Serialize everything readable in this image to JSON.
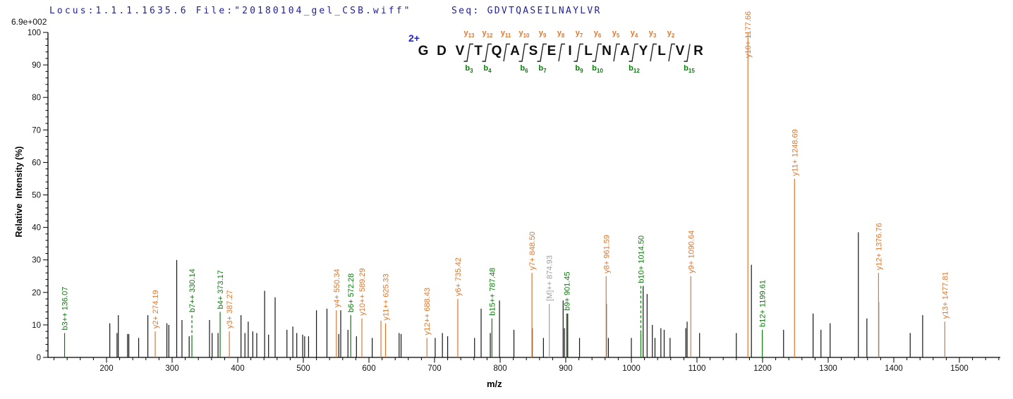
{
  "header": {
    "locus_file": "Locus:1.1.1.1635.6 File:\"20180104_gel_CSB.wiff\"",
    "seq_label": "Seq: GDVTQASEILNAYLVR",
    "base_peak_intensity": "6.9e+002"
  },
  "peptide": {
    "charge_label": "2+",
    "residues": [
      "G",
      "D",
      "V",
      "T",
      "Q",
      "A",
      "S",
      "E",
      "I",
      "L",
      "N",
      "A",
      "Y",
      "L",
      "V",
      "R"
    ],
    "cleavages": [
      {
        "after": 3,
        "y": "y13",
        "b": "b3"
      },
      {
        "after": 4,
        "y": "y12",
        "b": "b4"
      },
      {
        "after": 5,
        "y": "y11",
        "b": null
      },
      {
        "after": 6,
        "y": "y10",
        "b": "b6"
      },
      {
        "after": 7,
        "y": "y9",
        "b": "b7"
      },
      {
        "after": 8,
        "y": "y8",
        "b": null
      },
      {
        "after": 9,
        "y": "y7",
        "b": "b9"
      },
      {
        "after": 10,
        "y": "y6",
        "b": "b10"
      },
      {
        "after": 11,
        "y": "y5",
        "b": null
      },
      {
        "after": 12,
        "y": "y4",
        "b": "b12"
      },
      {
        "after": 13,
        "y": "y3",
        "b": null
      },
      {
        "after": 14,
        "y": "y2",
        "b": null
      },
      {
        "after": 15,
        "y": null,
        "b": "b15"
      }
    ]
  },
  "chart_data": {
    "type": "bar",
    "subtype": "ms2_centroid_mass_spectrum",
    "title": "",
    "xlabel": "m/z",
    "ylabel": "Relative  Intensity (%)",
    "xlim": [
      110,
      1562
    ],
    "ylim": [
      0,
      100
    ],
    "x_major_ticks": [
      200,
      300,
      400,
      500,
      600,
      700,
      800,
      900,
      1000,
      1100,
      1200,
      1300,
      1400,
      1500
    ],
    "x_minor_step": 20,
    "y_major_ticks": [
      0,
      10,
      20,
      30,
      40,
      50,
      60,
      70,
      80,
      90,
      100
    ],
    "y_minor_step": 2,
    "grid": false,
    "annotated_peaks": [
      {
        "label": "b3++ 136.07",
        "mz": 136.07,
        "intensity": 7.5,
        "ion": "b"
      },
      {
        "label": "y2+ 274.19",
        "mz": 274.19,
        "intensity": 8,
        "ion": "y"
      },
      {
        "label": "b7++ 330.14",
        "mz": 330.14,
        "intensity": 13,
        "ion": "b",
        "dashed": true,
        "solid_to": 6
      },
      {
        "label": "b4+ 373.17",
        "mz": 373.17,
        "intensity": 14,
        "ion": "b"
      },
      {
        "label": "y3+ 387.27",
        "mz": 387.27,
        "intensity": 8,
        "ion": "y"
      },
      {
        "label": "y4+ 550.34",
        "mz": 550.34,
        "intensity": 14.5,
        "ion": "y"
      },
      {
        "label": "b6+ 572.28",
        "mz": 572.28,
        "intensity": 13,
        "ion": "b"
      },
      {
        "label": "y10++ 589.29",
        "mz": 589.29,
        "intensity": 12,
        "ion": "y"
      },
      {
        "label": "y11++ 625.33",
        "mz": 625.33,
        "intensity": 10.5,
        "ion": "y"
      },
      {
        "label": "y12++ 688.43",
        "mz": 688.43,
        "intensity": 6,
        "ion": "y"
      },
      {
        "label": "y6+ 735.42",
        "mz": 735.42,
        "intensity": 18,
        "ion": "y"
      },
      {
        "label": "b15++ 787.48",
        "mz": 787.48,
        "intensity": 12,
        "ion": "b"
      },
      {
        "label": "y7+ 848.50",
        "mz": 848.5,
        "intensity": 26,
        "ion": "y"
      },
      {
        "label": "[M]++ 874.93",
        "mz": 874.93,
        "intensity": 16.5,
        "ion": "M"
      },
      {
        "label": "b9+ 901.45",
        "mz": 901.45,
        "intensity": 13.5,
        "ion": "b"
      },
      {
        "label": "y8+ 961.59",
        "mz": 961.59,
        "intensity": 25,
        "ion": "y"
      },
      {
        "label": "b10+ 1014.50",
        "mz": 1014.5,
        "intensity": 22,
        "ion": "b",
        "dashed": true,
        "solid_to": 7.5
      },
      {
        "label": "y9+ 1090.64",
        "mz": 1090.64,
        "intensity": 25,
        "ion": "y"
      },
      {
        "label": "y10+ 1177.66",
        "mz": 1177.66,
        "intensity": 100,
        "ion": "y"
      },
      {
        "label": "b12+ 1199.61",
        "mz": 1199.61,
        "intensity": 8.5,
        "ion": "b"
      },
      {
        "label": "y11+ 1248.69",
        "mz": 1248.69,
        "intensity": 55,
        "ion": "y"
      },
      {
        "label": "y12+ 1376.76",
        "mz": 1376.76,
        "intensity": 26,
        "ion": "y"
      },
      {
        "label": "y13+ 1477.81",
        "mz": 1477.81,
        "intensity": 11,
        "ion": "y"
      }
    ],
    "unlabeled_orange_peaks": [
      {
        "mz": 618.3,
        "intensity": 11.3,
        "note": "label hidden behind y11++ 625.33"
      }
    ],
    "unlabeled_peaks": [
      [
        205,
        10.5
      ],
      [
        216,
        7.5
      ],
      [
        218,
        13
      ],
      [
        232,
        7.2
      ],
      [
        234,
        7.2
      ],
      [
        249,
        6
      ],
      [
        263,
        13
      ],
      [
        292,
        10.5
      ],
      [
        295,
        10
      ],
      [
        307,
        30
      ],
      [
        315,
        11.5
      ],
      [
        326,
        6.5
      ],
      [
        357,
        11.5
      ],
      [
        361,
        7.5
      ],
      [
        370,
        7.5
      ],
      [
        405,
        13
      ],
      [
        411,
        7.5
      ],
      [
        416,
        11
      ],
      [
        423,
        8
      ],
      [
        429,
        7.5
      ],
      [
        441,
        20.5
      ],
      [
        447,
        7
      ],
      [
        457,
        18.5
      ],
      [
        475,
        8.5
      ],
      [
        484,
        9.5
      ],
      [
        490,
        7.5
      ],
      [
        499,
        7
      ],
      [
        502,
        6.5
      ],
      [
        508,
        6.5
      ],
      [
        520,
        14.5
      ],
      [
        536,
        15
      ],
      [
        554,
        7.2
      ],
      [
        557,
        14.5
      ],
      [
        568,
        8.5
      ],
      [
        581,
        6.5
      ],
      [
        605,
        6
      ],
      [
        646,
        7.5
      ],
      [
        649,
        7.2
      ],
      [
        701,
        6
      ],
      [
        712,
        7.5
      ],
      [
        720,
        6.5
      ],
      [
        761,
        6
      ],
      [
        771,
        15
      ],
      [
        785,
        7.5
      ],
      [
        799,
        17.5
      ],
      [
        821,
        8.5
      ],
      [
        849,
        9
      ],
      [
        866,
        6
      ],
      [
        896,
        17.5
      ],
      [
        898,
        9
      ],
      [
        903,
        13.5
      ],
      [
        921,
        6
      ],
      [
        962,
        16.5
      ],
      [
        965,
        6
      ],
      [
        1000,
        6
      ],
      [
        1018,
        22
      ],
      [
        1024,
        19.5
      ],
      [
        1032,
        10
      ],
      [
        1036,
        6
      ],
      [
        1045,
        9
      ],
      [
        1050,
        8.5
      ],
      [
        1059,
        6
      ],
      [
        1083,
        9
      ],
      [
        1085,
        11
      ],
      [
        1104,
        7.5
      ],
      [
        1160,
        7.5
      ],
      [
        1183,
        28.5
      ],
      [
        1232,
        8.5
      ],
      [
        1277,
        13.5
      ],
      [
        1289,
        8.5
      ],
      [
        1303,
        10.5
      ],
      [
        1346,
        38.5
      ],
      [
        1359,
        12
      ],
      [
        1377,
        17
      ],
      [
        1425,
        7.5
      ],
      [
        1444,
        13
      ]
    ]
  },
  "colors": {
    "y_ion": "#E0762C",
    "b_ion": "#0B7A0B",
    "precursor": "#9E9E9E",
    "peak": "#151515",
    "axis": "#000000",
    "header_text": "#1F1F97",
    "charge": "#2222CC"
  }
}
